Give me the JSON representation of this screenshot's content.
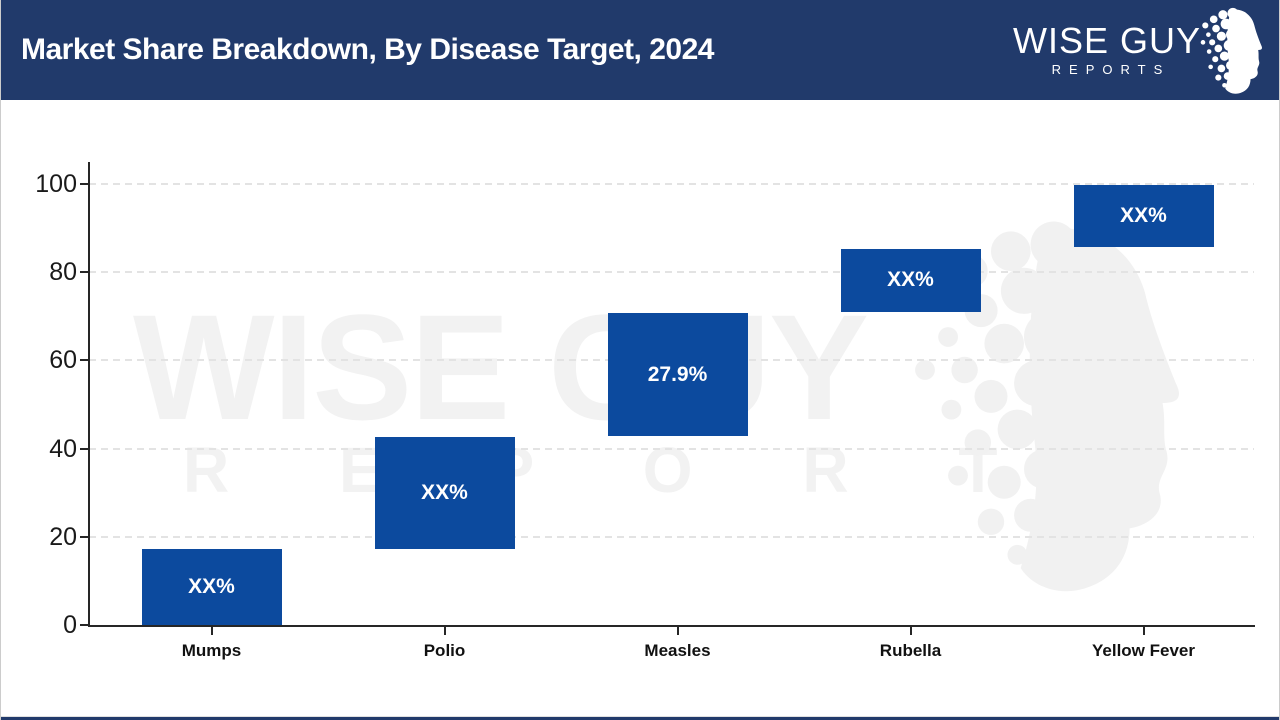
{
  "header": {
    "title": "Market Share Breakdown, By Disease Target, 2024",
    "logo": {
      "line1": "WISE GUY",
      "line2": "REPORTS"
    }
  },
  "watermark": {
    "line1": "WISE GUY",
    "line2": "R E P O R T S"
  },
  "colors": {
    "header_bg": "#213a6b",
    "bar": "#0c4a9e",
    "bar_label_text": "#ffffff",
    "axis": "#262626",
    "gridline": "#e3e3e3",
    "watermark": "#f2f2f2"
  },
  "chart_data": {
    "type": "bar",
    "subtype": "waterfall",
    "title": "Market Share Breakdown, By Disease Target, 2024",
    "xlabel": "",
    "ylabel": "",
    "categories": [
      "Mumps",
      "Polio",
      "Measles",
      "Rubella",
      "Yellow Fever"
    ],
    "segments": [
      {
        "category": "Mumps",
        "start": 0,
        "end": 17.2,
        "label": "XX%"
      },
      {
        "category": "Polio",
        "start": 17.2,
        "end": 42.7,
        "label": "XX%"
      },
      {
        "category": "Measles",
        "start": 42.8,
        "end": 70.7,
        "label": "27.9%"
      },
      {
        "category": "Rubella",
        "start": 71.0,
        "end": 85.3,
        "label": "XX%"
      },
      {
        "category": "Yellow Fever",
        "start": 85.6,
        "end": 99.8,
        "label": "XX%"
      }
    ],
    "yticks": [
      0,
      20,
      40,
      60,
      80,
      100
    ],
    "ylim": [
      0,
      105
    ],
    "grid": "horizontal-dashed",
    "legend": "none"
  }
}
